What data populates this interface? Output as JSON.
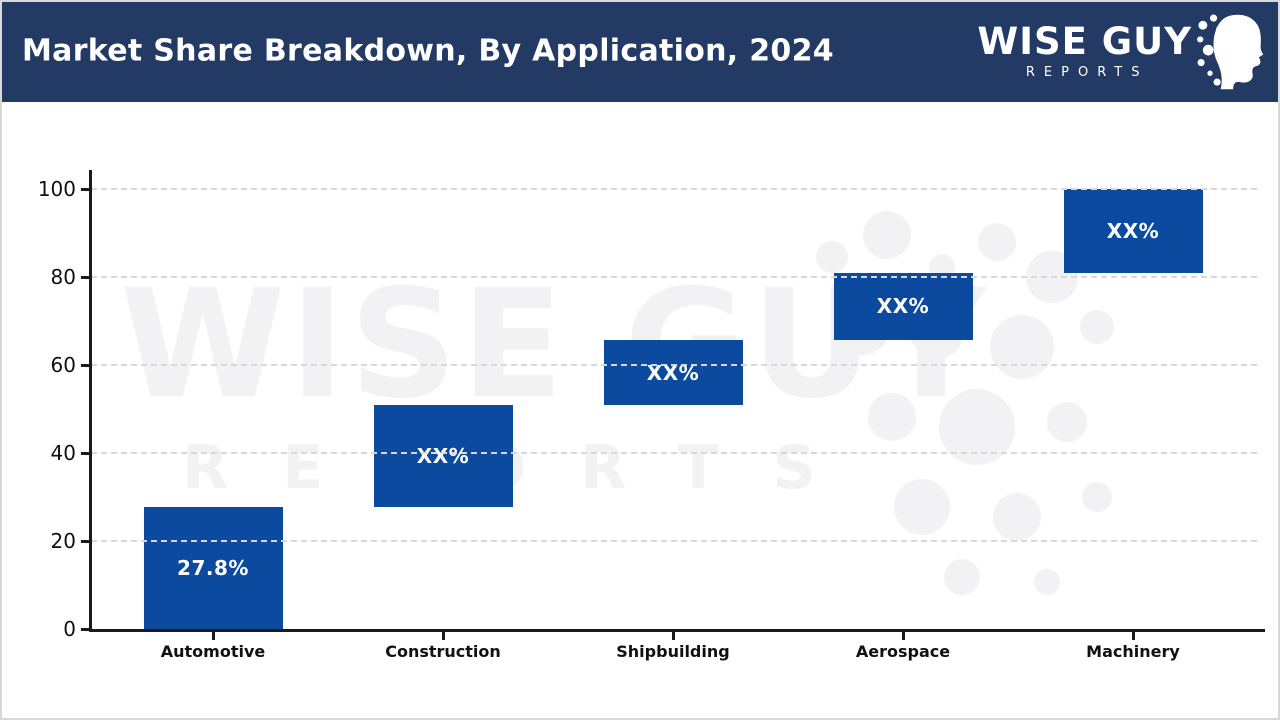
{
  "header": {
    "title": "Market Share Breakdown, By Application, 2024",
    "bg_color": "#223a64",
    "logo": {
      "line1": "WISE GUY",
      "line2": "REPORTS"
    }
  },
  "watermark": {
    "line1": "WISE GUY",
    "line2": "REPORTS"
  },
  "chart_data": {
    "type": "bar",
    "subtype": "floating-segment-waterfall",
    "title": "Market Share Breakdown, By Application, 2024",
    "categories": [
      "Automotive",
      "Construction",
      "Shipbuilding",
      "Aerospace",
      "Machinery"
    ],
    "segments": [
      {
        "category": "Automotive",
        "start": 0,
        "end": 27.8,
        "label": "27.8%"
      },
      {
        "category": "Construction",
        "start": 27.8,
        "end": 50.8,
        "label": "XX%"
      },
      {
        "category": "Shipbuilding",
        "start": 50.8,
        "end": 65.7,
        "label": "XX%"
      },
      {
        "category": "Aerospace",
        "start": 65.7,
        "end": 80.9,
        "label": "XX%"
      },
      {
        "category": "Machinery",
        "start": 80.9,
        "end": 100,
        "label": "XX%"
      }
    ],
    "ylim": [
      0,
      100
    ],
    "yticks": [
      "0",
      "20",
      "40",
      "60",
      "80",
      "100"
    ],
    "grid": "horizontal-dashed",
    "legend": "none",
    "bar_color": "#0b4a9e",
    "bar_label_color": "#ffffff",
    "axis_color": "#1a1a1a",
    "gridline_color": "#d8d8d8"
  }
}
